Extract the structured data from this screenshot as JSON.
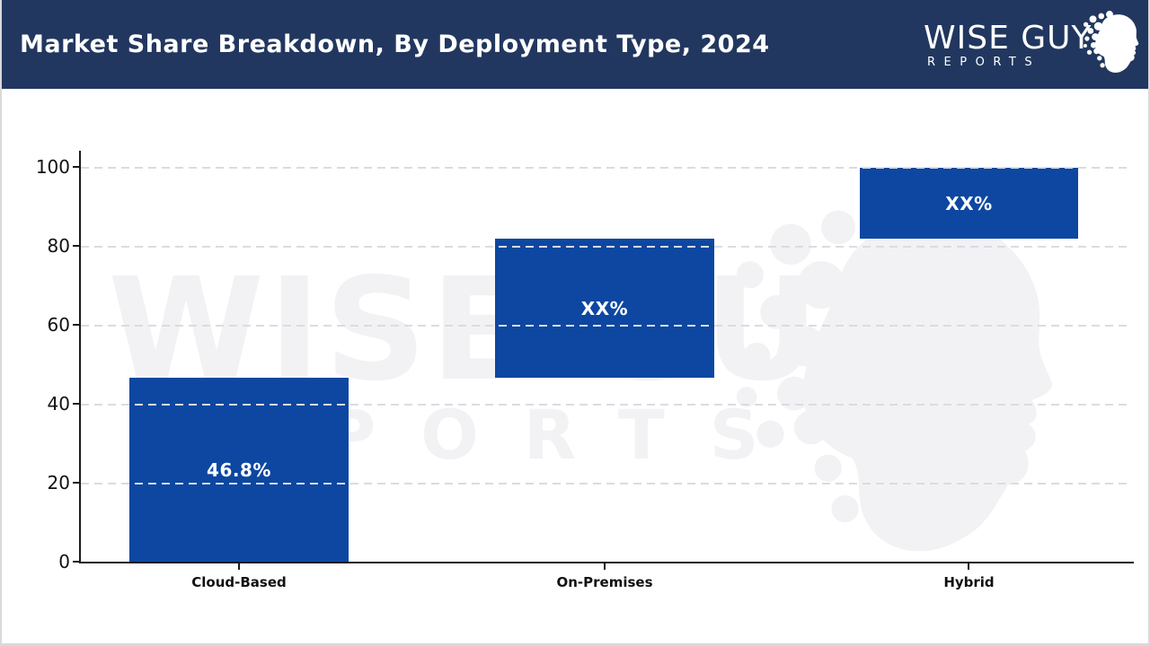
{
  "header": {
    "title": "Market Share Breakdown, By Deployment Type, 2024",
    "logo": {
      "line1": "WISE GUY",
      "line2": "REPORTS"
    }
  },
  "watermark": {
    "line1": "WISE GUY",
    "line2": "REPORTS"
  },
  "colors": {
    "header_bg": "#22375f",
    "bar": "#0d47a1",
    "bar_label": "#ffffff",
    "gridline": "#d9dce2",
    "axis": "#1a1a1a"
  },
  "chart_data": {
    "type": "bar",
    "subtype": "floating-waterfall",
    "title": "Market Share Breakdown, By Deployment Type, 2024",
    "categories": [
      "Cloud-Based",
      "On-Premises",
      "Hybrid"
    ],
    "segments": [
      {
        "category": "Cloud-Based",
        "start": 0,
        "end": 46.8,
        "label": "46.8%"
      },
      {
        "category": "On-Premises",
        "start": 46.8,
        "end": 82,
        "label": "XX%"
      },
      {
        "category": "Hybrid",
        "start": 82,
        "end": 100,
        "label": "XX%"
      }
    ],
    "y_ticks": [
      "0",
      "20",
      "40",
      "60",
      "80",
      "100"
    ],
    "ylim": [
      0,
      100
    ],
    "xlabel": "",
    "ylabel": "",
    "grid": "horizontal dashed, drawn over bars",
    "legend": "none",
    "values_unit": "percent market share"
  }
}
